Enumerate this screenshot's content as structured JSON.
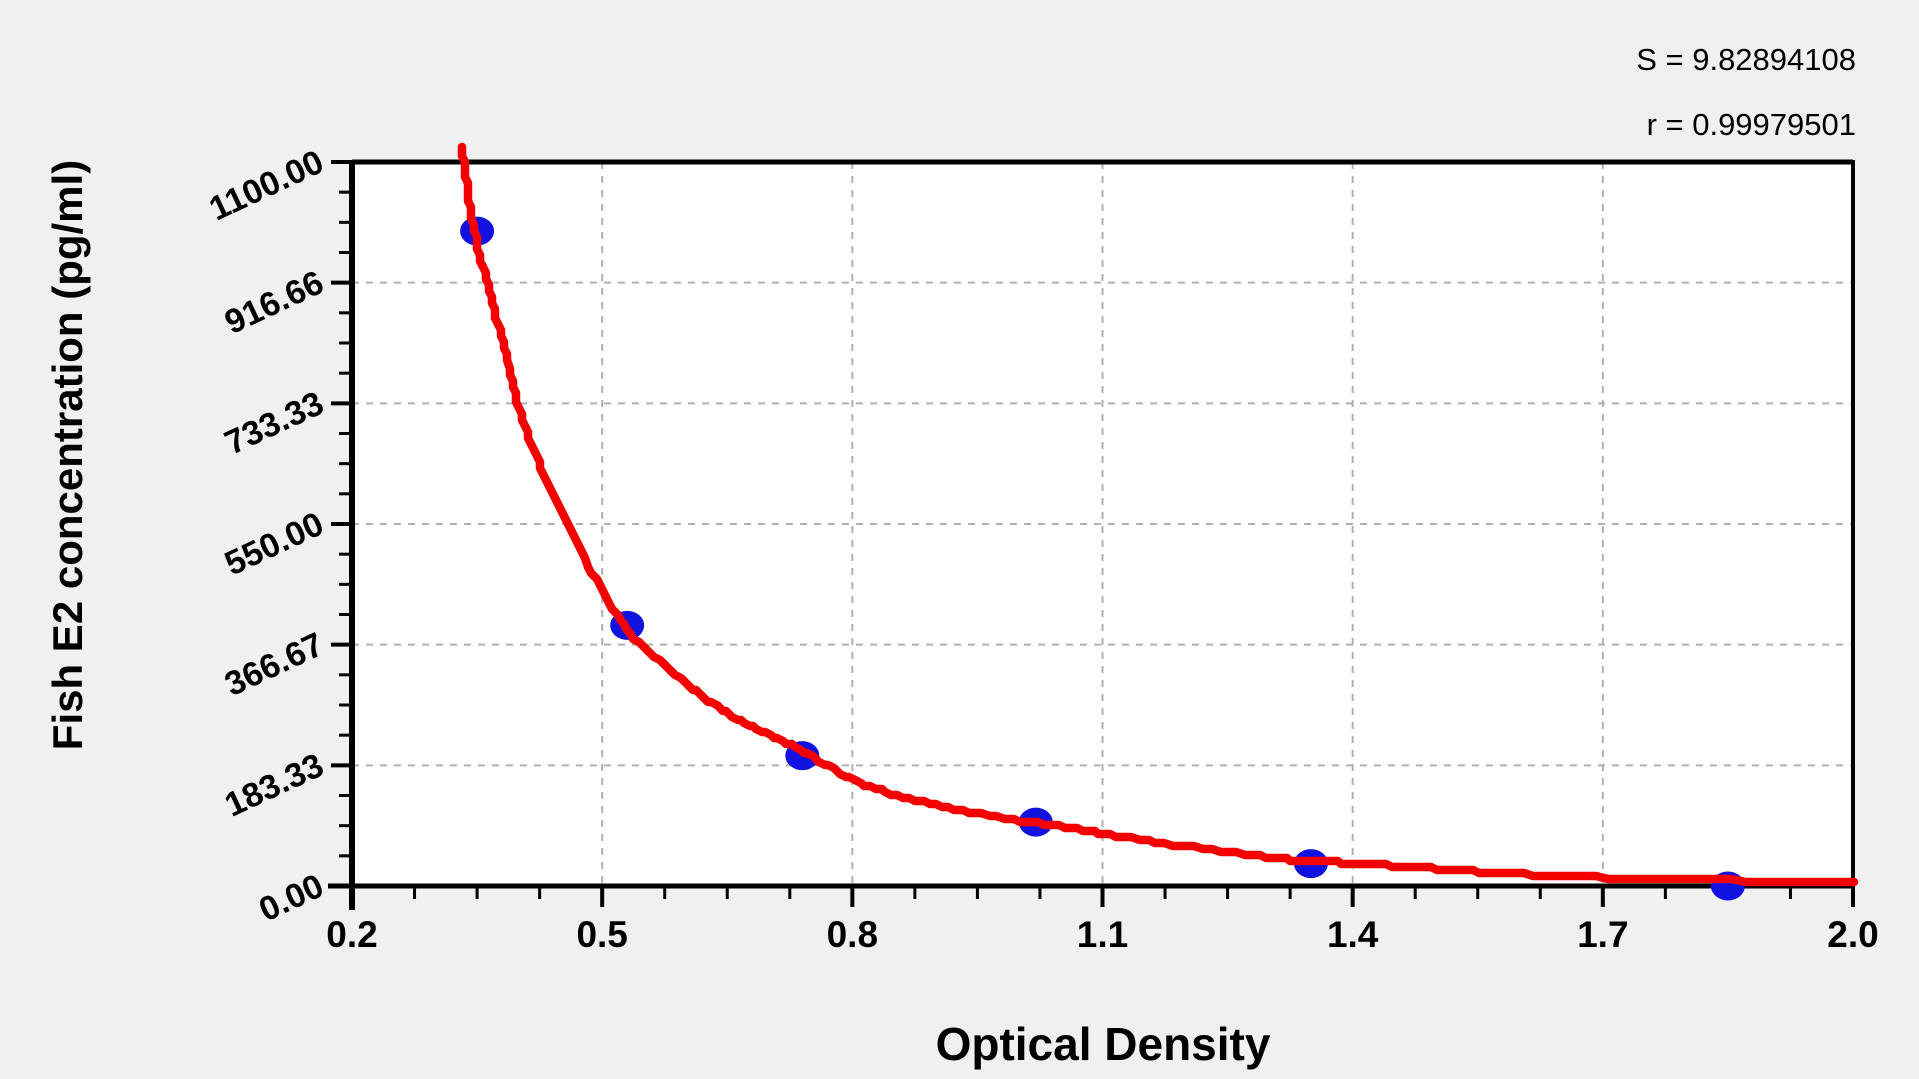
{
  "page": {
    "background_color": "#f0f0f0",
    "plot_background_color": "#ffffff"
  },
  "stats": {
    "s_label": "S = 9.82894108",
    "r_label": "r = 0.99979501"
  },
  "chart_data": {
    "type": "scatter",
    "title": "",
    "xlabel": "Optical Density",
    "ylabel": "Fish E2 concentration (pg/ml)",
    "xlim": [
      0.2,
      2.0
    ],
    "ylim": [
      0,
      1100
    ],
    "x_ticks": [
      0.2,
      0.5,
      0.8,
      1.1,
      1.4,
      1.7,
      2.0
    ],
    "x_tick_labels": [
      "0.2",
      "0.5",
      "0.8",
      "1.1",
      "1.4",
      "1.7",
      "2.0"
    ],
    "y_ticks": [
      0,
      183.33,
      366.67,
      550.0,
      733.33,
      916.66,
      1100.0
    ],
    "y_tick_labels": [
      "0.00",
      "183.33",
      "366.67",
      "550.00",
      "733.33",
      "916.66",
      "1100.00"
    ],
    "minor_divisions_per_major": 4,
    "grid": {
      "show": true,
      "style": "dashed",
      "location": "interior_major_ticks"
    },
    "legend_position": "none",
    "stats": {
      "S": 9.82894108,
      "r": 0.99979501
    },
    "series": [
      {
        "name": "standard-points",
        "type": "scatter",
        "points": [
          [
            0.35,
            995
          ],
          [
            0.53,
            396
          ],
          [
            0.74,
            198
          ],
          [
            1.02,
            97
          ],
          [
            1.35,
            34
          ],
          [
            1.85,
            0
          ]
        ]
      },
      {
        "name": "fitted-curve",
        "type": "line",
        "points": [
          [
            0.332,
            1124
          ],
          [
            0.347,
            995
          ],
          [
            0.377,
            846
          ],
          [
            0.41,
            689
          ],
          [
            0.461,
            545
          ],
          [
            0.526,
            396
          ],
          [
            0.593,
            316
          ],
          [
            0.657,
            257
          ],
          [
            0.737,
            207
          ],
          [
            0.821,
            151
          ],
          [
            0.939,
            113
          ],
          [
            1.076,
            85
          ],
          [
            1.121,
            75
          ],
          [
            1.277,
            47
          ],
          [
            1.349,
            38
          ],
          [
            1.424,
            33
          ],
          [
            1.574,
            20
          ],
          [
            1.756,
            11
          ],
          [
            2.002,
            6
          ]
        ]
      }
    ],
    "colors": {
      "curve": "#f40000",
      "points": "#1212e0",
      "grid": "#b0b0b0",
      "axis": "#000000"
    }
  }
}
